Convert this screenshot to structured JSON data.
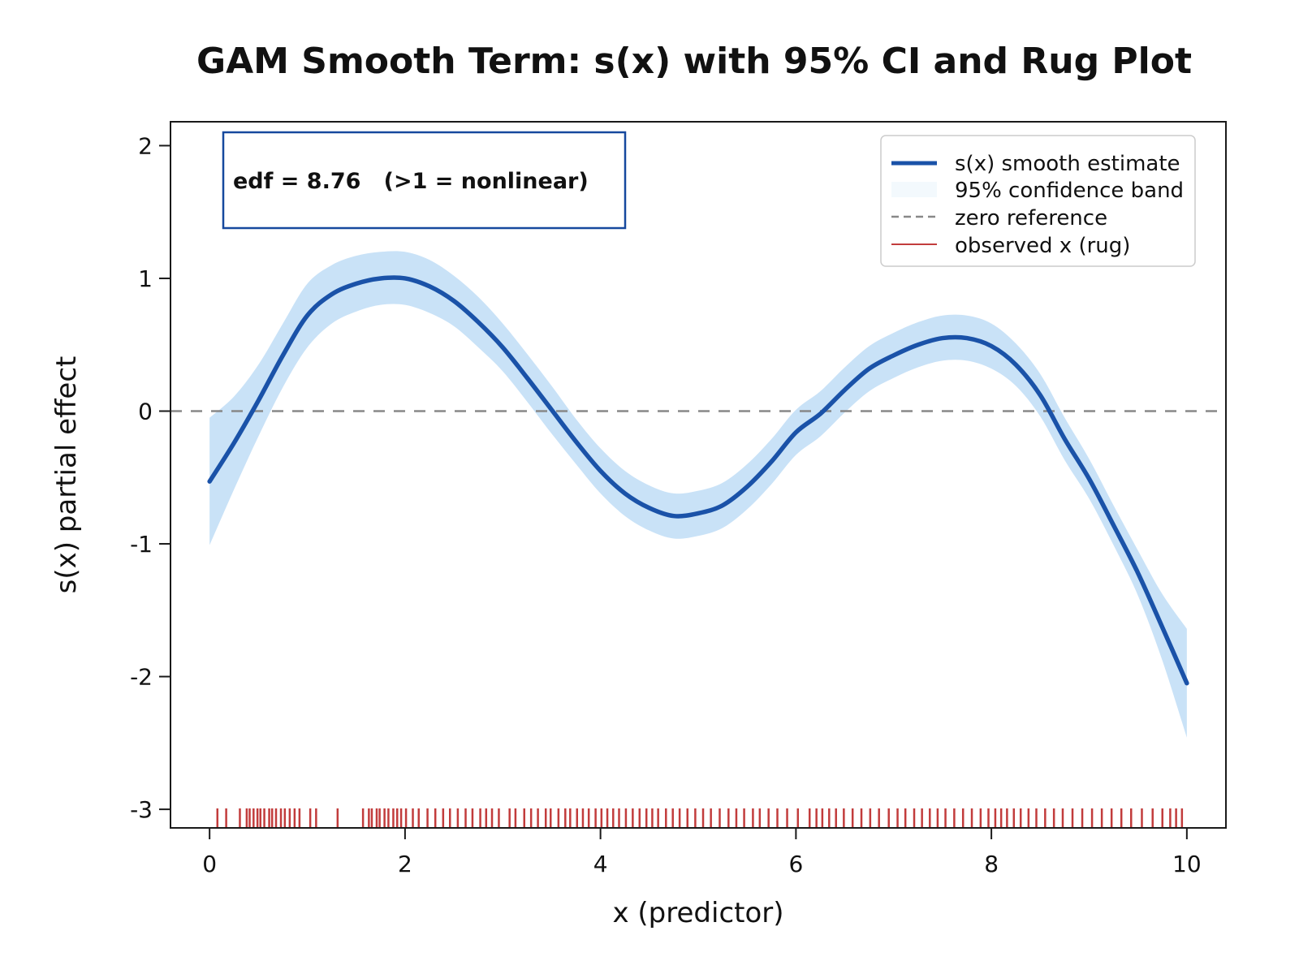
{
  "annotation": {
    "text": "edf = 8.76   (>1 = nonlinear)"
  },
  "legend": {
    "items": [
      {
        "label": "s(x) smooth estimate",
        "swatch": "thick-line"
      },
      {
        "label": "95% confidence band",
        "swatch": "band-patch"
      },
      {
        "label": "zero reference",
        "swatch": "dashed-line"
      },
      {
        "label": "observed x (rug)",
        "swatch": "thin-line"
      }
    ]
  },
  "colors": {
    "smooth_line": "#1a52a8",
    "confidence_band": "#c9e2f7",
    "zero_reference": "#888888",
    "rug": "#c23c3c",
    "annotation": "#16499e",
    "frame": "#1a1a1a",
    "legend_border": "#cccccc"
  },
  "chart_data": {
    "type": "line",
    "title": "GAM Smooth Term: s(x) with 95% CI and Rug Plot",
    "xlabel": "x (predictor)",
    "ylabel": "s(x)  partial effect",
    "xlim": [
      -0.4,
      10.4
    ],
    "ylim": [
      -3.14,
      2.18
    ],
    "x_ticks": [
      0,
      2,
      4,
      6,
      8,
      10
    ],
    "y_ticks": [
      2,
      1,
      0,
      -1,
      -2,
      -3
    ],
    "grid": false,
    "legend_position": "upper right",
    "zero_reference_y": 0,
    "smooth": {
      "name": "s(x) smooth estimate",
      "x": [
        0,
        0.25,
        0.5,
        0.75,
        1,
        1.25,
        1.5,
        1.75,
        2,
        2.25,
        2.5,
        2.75,
        3,
        3.25,
        3.5,
        3.75,
        4,
        4.25,
        4.5,
        4.75,
        5,
        5.25,
        5.5,
        5.75,
        6,
        6.25,
        6.5,
        6.75,
        7,
        7.25,
        7.5,
        7.75,
        8,
        8.25,
        8.5,
        8.75,
        9,
        9.25,
        9.5,
        9.75,
        10
      ],
      "y": [
        -0.53,
        -0.24,
        0.08,
        0.42,
        0.72,
        0.88,
        0.96,
        1.0,
        1.0,
        0.94,
        0.83,
        0.67,
        0.48,
        0.25,
        0.01,
        -0.23,
        -0.45,
        -0.62,
        -0.73,
        -0.79,
        -0.77,
        -0.71,
        -0.57,
        -0.38,
        -0.16,
        -0.02,
        0.16,
        0.32,
        0.42,
        0.5,
        0.55,
        0.55,
        0.49,
        0.35,
        0.12,
        -0.21,
        -0.51,
        -0.86,
        -1.22,
        -1.63,
        -2.05
      ],
      "ci_upper": [
        -0.05,
        0.11,
        0.35,
        0.66,
        0.96,
        1.1,
        1.17,
        1.2,
        1.2,
        1.14,
        1.02,
        0.86,
        0.66,
        0.43,
        0.19,
        -0.06,
        -0.28,
        -0.45,
        -0.56,
        -0.62,
        -0.6,
        -0.54,
        -0.4,
        -0.21,
        0.01,
        0.15,
        0.33,
        0.49,
        0.59,
        0.67,
        0.72,
        0.72,
        0.66,
        0.51,
        0.28,
        -0.05,
        -0.36,
        -0.71,
        -1.05,
        -1.38,
        -1.64
      ],
      "ci_lower": [
        -1.01,
        -0.59,
        -0.19,
        0.18,
        0.48,
        0.66,
        0.75,
        0.8,
        0.8,
        0.74,
        0.64,
        0.48,
        0.3,
        0.07,
        -0.17,
        -0.4,
        -0.62,
        -0.79,
        -0.9,
        -0.96,
        -0.94,
        -0.88,
        -0.74,
        -0.55,
        -0.33,
        -0.19,
        -0.01,
        0.15,
        0.25,
        0.33,
        0.38,
        0.38,
        0.32,
        0.19,
        -0.04,
        -0.37,
        -0.66,
        -1.01,
        -1.39,
        -1.88,
        -2.46
      ]
    },
    "rug_x": [
      0.08,
      0.17,
      0.31,
      0.38,
      0.41,
      0.45,
      0.49,
      0.52,
      0.56,
      0.61,
      0.64,
      0.68,
      0.73,
      0.77,
      0.82,
      0.87,
      0.92,
      1.03,
      1.09,
      1.31,
      1.57,
      1.63,
      1.66,
      1.71,
      1.74,
      1.79,
      1.83,
      1.88,
      1.92,
      1.96,
      2.01,
      2.08,
      2.14,
      2.23,
      2.31,
      2.39,
      2.46,
      2.54,
      2.62,
      2.69,
      2.77,
      2.83,
      2.89,
      2.96,
      3.07,
      3.13,
      3.22,
      3.29,
      3.36,
      3.44,
      3.49,
      3.57,
      3.64,
      3.69,
      3.76,
      3.82,
      3.88,
      3.95,
      4.01,
      4.07,
      4.13,
      4.19,
      4.26,
      4.33,
      4.4,
      4.47,
      4.53,
      4.59,
      4.67,
      4.74,
      4.81,
      4.89,
      4.97,
      5.05,
      5.13,
      5.22,
      5.31,
      5.39,
      5.47,
      5.56,
      5.63,
      5.72,
      5.81,
      5.91,
      6.02,
      6.14,
      6.21,
      6.27,
      6.34,
      6.41,
      6.49,
      6.58,
      6.67,
      6.76,
      6.85,
      6.95,
      7.04,
      7.12,
      7.21,
      7.29,
      7.37,
      7.45,
      7.53,
      7.62,
      7.71,
      7.8,
      7.89,
      7.97,
      8.04,
      8.1,
      8.16,
      8.23,
      8.3,
      8.38,
      8.46,
      8.55,
      8.64,
      8.73,
      8.83,
      8.93,
      9.03,
      9.13,
      9.23,
      9.33,
      9.43,
      9.54,
      9.65,
      9.75,
      9.83,
      9.89,
      9.95
    ]
  }
}
